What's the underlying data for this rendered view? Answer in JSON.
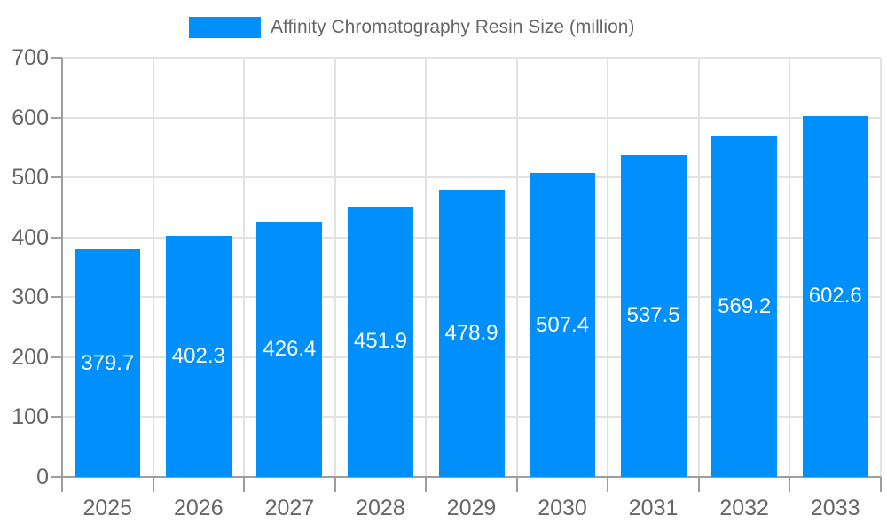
{
  "legend": {
    "label": "Affinity Chromatography Resin Size (million)"
  },
  "chart_data": {
    "type": "bar",
    "title": "",
    "series_name": "Affinity Chromatography Resin Size (million)",
    "categories": [
      "2025",
      "2026",
      "2027",
      "2028",
      "2029",
      "2030",
      "2031",
      "2032",
      "2033"
    ],
    "values": [
      379.7,
      402.3,
      426.4,
      451.9,
      478.9,
      507.4,
      537.5,
      569.2,
      602.6
    ],
    "data_label_texts": [
      "379.7",
      "402.3",
      "426.4",
      "451.9",
      "478.9",
      "507.4",
      "537.5",
      "569.2",
      "602.6"
    ],
    "xlabel": "",
    "ylabel": "",
    "ylim": [
      0,
      700
    ],
    "yticks": [
      "0",
      "100",
      "200",
      "300",
      "400",
      "500",
      "600",
      "700"
    ],
    "grid": true,
    "legend_position": "top",
    "data_labels_position": "inside-center",
    "colors": {
      "bar": "#008ffb",
      "grid": "#e2e2e2",
      "axis": "#9e9e9e",
      "tick_text": "#666666",
      "data_label_text": "#ffffff"
    }
  }
}
